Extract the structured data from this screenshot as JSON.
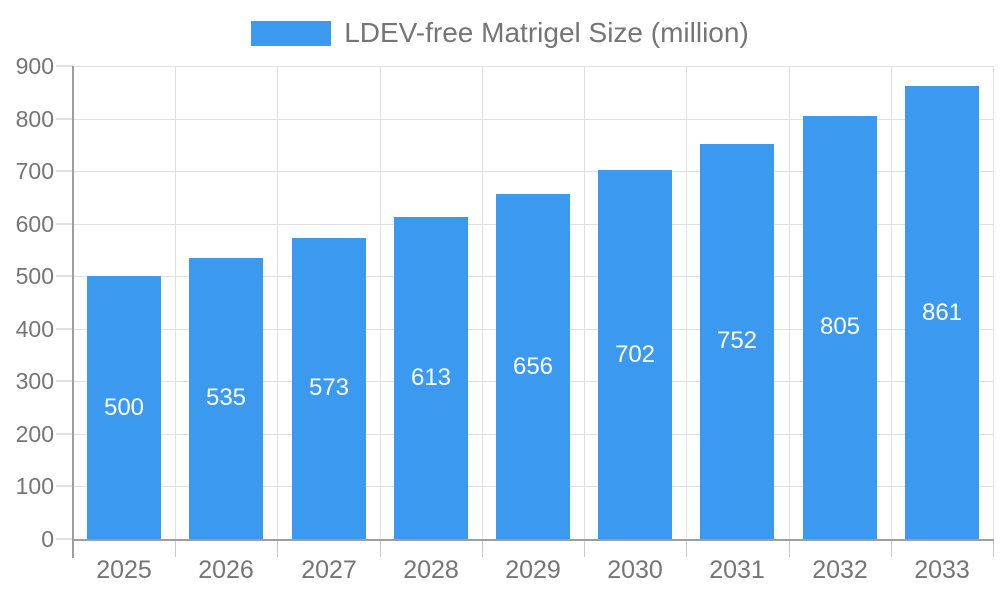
{
  "chart_data": {
    "type": "bar",
    "title": "LDEV-free Matrigel Size (million)",
    "legend_position": "top",
    "categories": [
      "2025",
      "2026",
      "2027",
      "2028",
      "2029",
      "2030",
      "2031",
      "2032",
      "2033"
    ],
    "series": [
      {
        "name": "LDEV-free Matrigel Size (million)",
        "values": [
          500,
          535,
          573,
          613,
          656,
          702,
          752,
          805,
          861
        ]
      }
    ],
    "xlabel": "",
    "ylabel": "",
    "ylim": [
      0,
      900
    ],
    "y_ticks": [
      0,
      100,
      200,
      300,
      400,
      500,
      600,
      700,
      800,
      900
    ],
    "grid": true,
    "value_labels": "inside-center",
    "colors": {
      "bar": "#3B99F0",
      "value_label": "#FFFFFF",
      "axis_text": "#757575",
      "grid_line": "#E0E0E0",
      "axis_line": "#9E9E9E",
      "tick": "#C9C9C9",
      "background": "#FFFFFF"
    }
  }
}
